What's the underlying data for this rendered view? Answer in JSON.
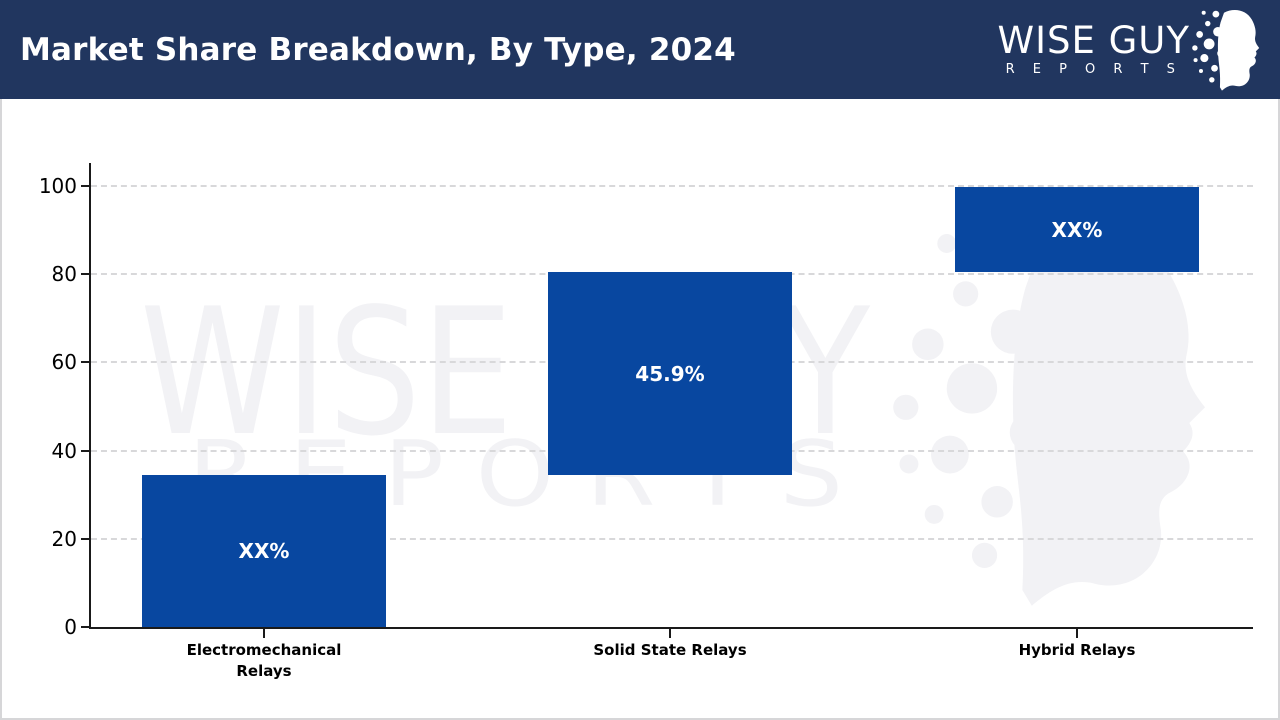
{
  "header": {
    "title": "Market Share Breakdown, By Type, 2024",
    "logo": {
      "line1": "WISE GUY",
      "line2": "R E P O R T S",
      "face_icon": "dotted-head-profile"
    }
  },
  "watermark": {
    "line1": "WISE GUY",
    "line2": "R E P O R T S",
    "face_icon": "dotted-head-profile"
  },
  "chart_data": {
    "type": "bar",
    "subtype": "floating-stacked-waterfall",
    "title": "Market Share Breakdown, By Type, 2024",
    "categories": [
      "Electromechanical Relays",
      "Solid State Relays",
      "Hybrid Relays"
    ],
    "series": [
      {
        "name": "Electromechanical Relays",
        "start": 0,
        "end": 34.5,
        "label": "XX%"
      },
      {
        "name": "Solid State Relays",
        "start": 34.5,
        "end": 80.4,
        "label": "45.9%"
      },
      {
        "name": "Hybrid Relays",
        "start": 80.4,
        "end": 99.8,
        "label": "XX%"
      }
    ],
    "xlabel": "",
    "ylabel": "",
    "ylim": [
      0,
      100
    ],
    "yticks": [
      0,
      20,
      40,
      60,
      80,
      100
    ],
    "grid": "horizontal-dashed",
    "legend": "none",
    "bar_color": "#0847a0",
    "bar_label_color": "#ffffff",
    "axis_color": "#1a1a1a",
    "gridline_color": "#d8d8da"
  },
  "colors": {
    "header_bg": "#21365f",
    "page_bg": "#ffffff",
    "watermark": "#f2f2f5"
  }
}
